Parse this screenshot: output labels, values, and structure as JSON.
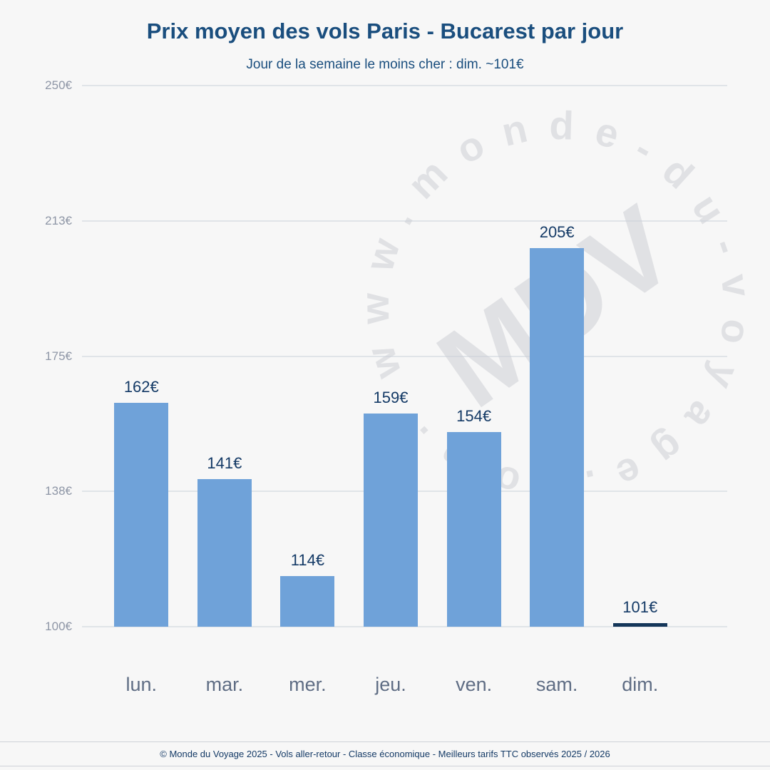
{
  "chart_data": {
    "type": "bar",
    "title": "Prix moyen des vols Paris - Bucarest par jour",
    "subtitle": "Jour de la semaine le moins cher : dim. ~101€",
    "categories": [
      "lun.",
      "mar.",
      "mer.",
      "jeu.",
      "ven.",
      "sam.",
      "dim."
    ],
    "values": [
      162,
      141,
      114,
      159,
      154,
      205,
      101
    ],
    "value_labels": [
      "162€",
      "141€",
      "114€",
      "159€",
      "154€",
      "205€",
      "101€"
    ],
    "y_tick_labels": [
      "100€",
      "138€",
      "175€",
      "213€",
      "250€"
    ],
    "ylim": [
      100,
      250
    ],
    "xlabel": "",
    "ylabel": "",
    "grid": true,
    "legend": false,
    "bar_color": "#6fa2d9",
    "highlight_index": 6,
    "highlight_color": "#143659",
    "background_color": "#f7f7f7",
    "title_color": "#1a4e7e"
  },
  "watermark": {
    "circle_text": "· www.monde-du-voyage.com",
    "center_text": "MDV"
  },
  "footer": {
    "text": "© Monde du Voyage 2025 - Vols aller-retour - Classe économique - Meilleurs tarifs TTC observés 2025 / 2026"
  }
}
